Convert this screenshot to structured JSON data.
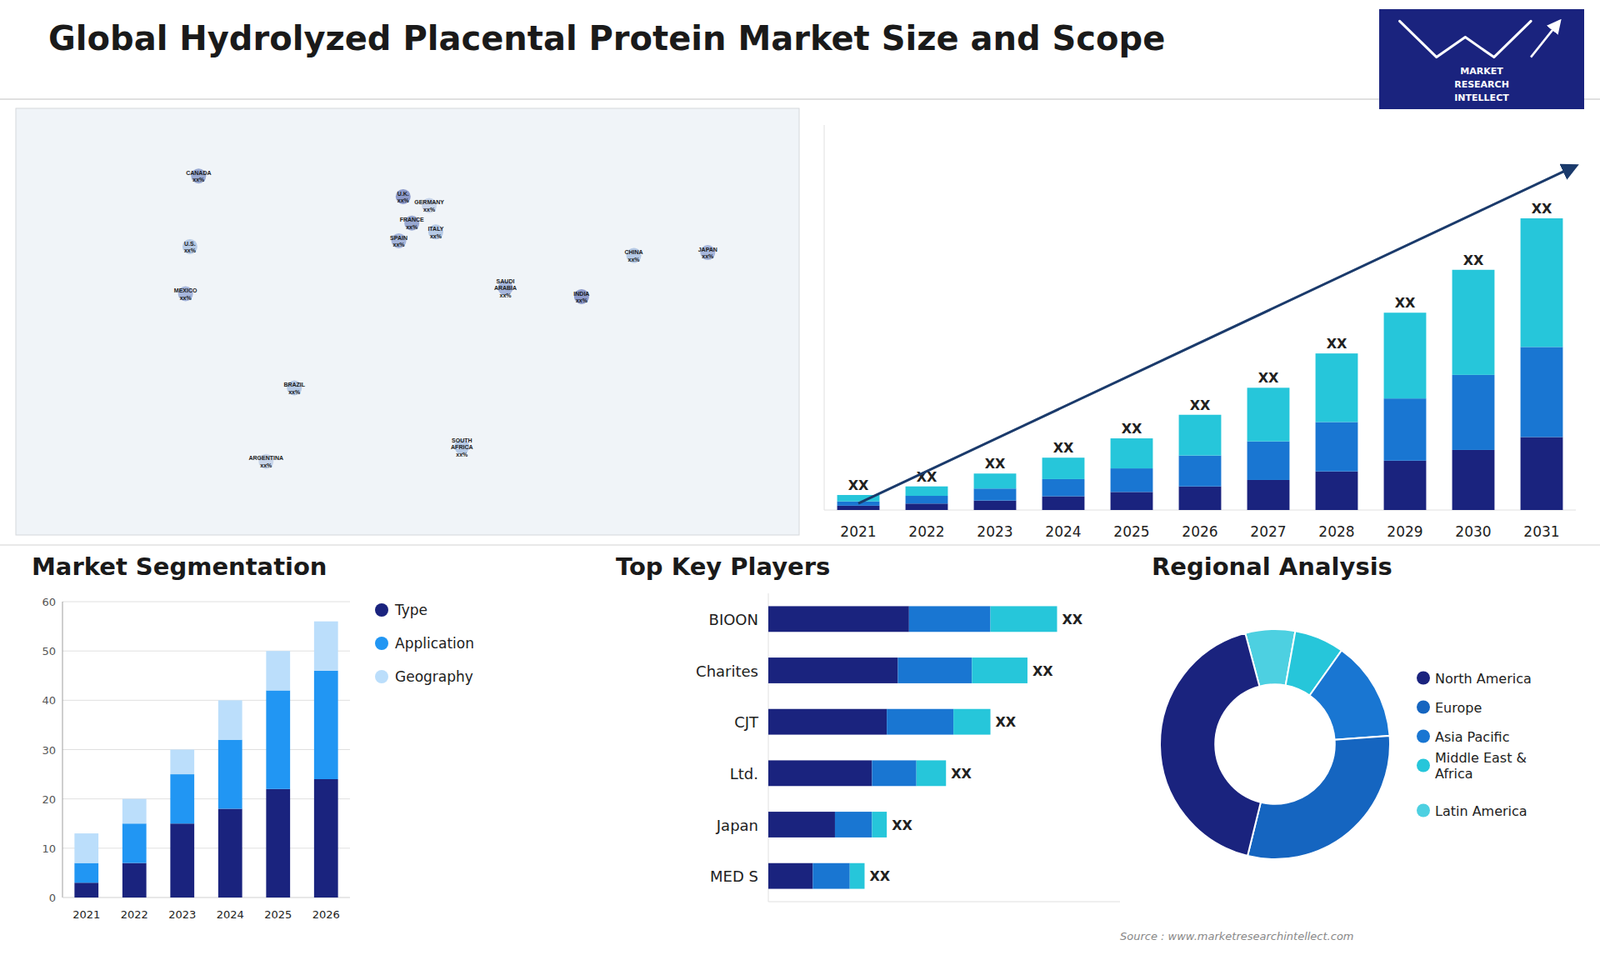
{
  "chart_data": [
    {
      "type": "bar",
      "title": "Global Hydrolyzed Placental Protein Market Size and Scope",
      "categories": [
        "2021",
        "2022",
        "2023",
        "2024",
        "2025",
        "2026",
        "2027",
        "2028",
        "2029",
        "2030",
        "2031"
      ],
      "series": [
        {
          "color": "#1a237e",
          "values": [
            1.0,
            1.5,
            2.2,
            3.2,
            4.2,
            5.5,
            7.0,
            9.0,
            11.5,
            14.0,
            17.0
          ]
        },
        {
          "color": "#1976d2",
          "values": [
            1.0,
            1.8,
            2.8,
            4.0,
            5.5,
            7.2,
            9.0,
            11.5,
            14.5,
            17.5,
            21.0
          ]
        },
        {
          "color": "#26c6da",
          "values": [
            1.5,
            2.2,
            3.5,
            5.0,
            7.0,
            9.5,
            12.5,
            16.0,
            20.0,
            24.5,
            30.0
          ]
        }
      ],
      "stacked": true,
      "ylim": [
        0,
        89.76
      ],
      "tick_labels": "x",
      "annotations": [
        "XX",
        "XX",
        "XX",
        "XX",
        "XX",
        "XX",
        "XX",
        "XX",
        "XX",
        "XX",
        "XX",
        "MARKET",
        "RESEARCH",
        "INTELLECT"
      ]
    },
    {
      "type": "map",
      "categories": [
        "U.S.\nxx%",
        "CANADA\nxx%",
        "MEXICO\nxx%",
        "BRAZIL\nxx%",
        "ARGENTINA\nxx%",
        "U.K.\nxx%",
        "FRANCE\nxx%",
        "SPAIN\nxx%",
        "ITALY\nxx%",
        "GERMANY\nxx%",
        "SAUDI\nARABIA\nxx%",
        "SOUTH\nAFRICA\nxx%",
        "CHINA\nxx%",
        "JAPAN\nxx%",
        "INDIA\nxx%"
      ],
      "x": [
        -100,
        -96,
        -102,
        -52,
        -65,
        -2,
        2,
        -4,
        13,
        10,
        45,
        25,
        104,
        138,
        80
      ],
      "values": [
        38,
        62,
        22,
        -10,
        -35,
        55,
        46,
        40,
        43,
        52,
        24,
        -30,
        35,
        36,
        21
      ],
      "colors": [
        "#7b9fd4",
        "#3f5ba9",
        "#5c78c0",
        "#7b9fd4",
        "#9fb5db",
        "#2a3f9e",
        "#3f5ba9",
        "#5c78c0",
        "#7b9fd4",
        "#9fb5db",
        "#5c78c0",
        "#7b9fd4",
        "#7b9fd4",
        "#5c78c0",
        "#2a3f9e"
      ],
      "xlim": [
        -180,
        180
      ],
      "ylim": [
        -60,
        85
      ],
      "tick_labels": false
    },
    {
      "type": "bar",
      "title": "Market Segmentation",
      "categories": [
        "2021",
        "2022",
        "2023",
        "2024",
        "2025",
        "2026"
      ],
      "series": [
        {
          "name": "Type",
          "color": "#1a237e",
          "values": [
            3,
            7,
            15,
            18,
            22,
            24
          ]
        },
        {
          "name": "Application",
          "color": "#2196f3",
          "values": [
            4,
            8,
            10,
            14,
            20,
            22
          ]
        },
        {
          "name": "Geography",
          "color": "#bbdefb",
          "values": [
            6,
            5,
            5,
            8,
            8,
            10
          ]
        }
      ],
      "stacked": true,
      "ylim": [
        0,
        60
      ],
      "yticks": [
        0,
        10,
        20,
        30,
        40,
        50,
        60
      ],
      "grid": true,
      "legend": "right"
    },
    {
      "type": "bar",
      "title": "Top Key Players",
      "orientation": "horizontal",
      "stacked": true,
      "categories": [
        "BIOON",
        "Charites",
        "CJT",
        "Ltd.",
        "Japan",
        "MED S"
      ],
      "series": [
        {
          "color": "#1a237e",
          "values": [
            0.38,
            0.35,
            0.32,
            0.28,
            0.18,
            0.12
          ]
        },
        {
          "color": "#1976d2",
          "values": [
            0.22,
            0.2,
            0.18,
            0.12,
            0.1,
            0.1
          ]
        },
        {
          "color": "#26c6da",
          "values": [
            0.18,
            0.15,
            0.1,
            0.08,
            0.04,
            0.04
          ]
        }
      ],
      "xlim": [
        0,
        0.95
      ],
      "tick_labels": "y",
      "annotations": [
        "XX",
        "XX",
        "XX",
        "XX",
        "XX",
        "XX"
      ]
    },
    {
      "type": "donut",
      "title": "Regional Analysis",
      "categories": [
        "Latin America",
        "Middle East &\nAfrica",
        "Asia Pacific",
        "Europe",
        "North America"
      ],
      "values": [
        0.07,
        0.07,
        0.14,
        0.3,
        0.42
      ],
      "colors": [
        "#4dd0e1",
        "#26c6da",
        "#1976d2",
        "#1565c0",
        "#1a237e"
      ],
      "legend": "right",
      "annotations": [
        "Source : www.marketresearchintellect.com"
      ]
    }
  ]
}
